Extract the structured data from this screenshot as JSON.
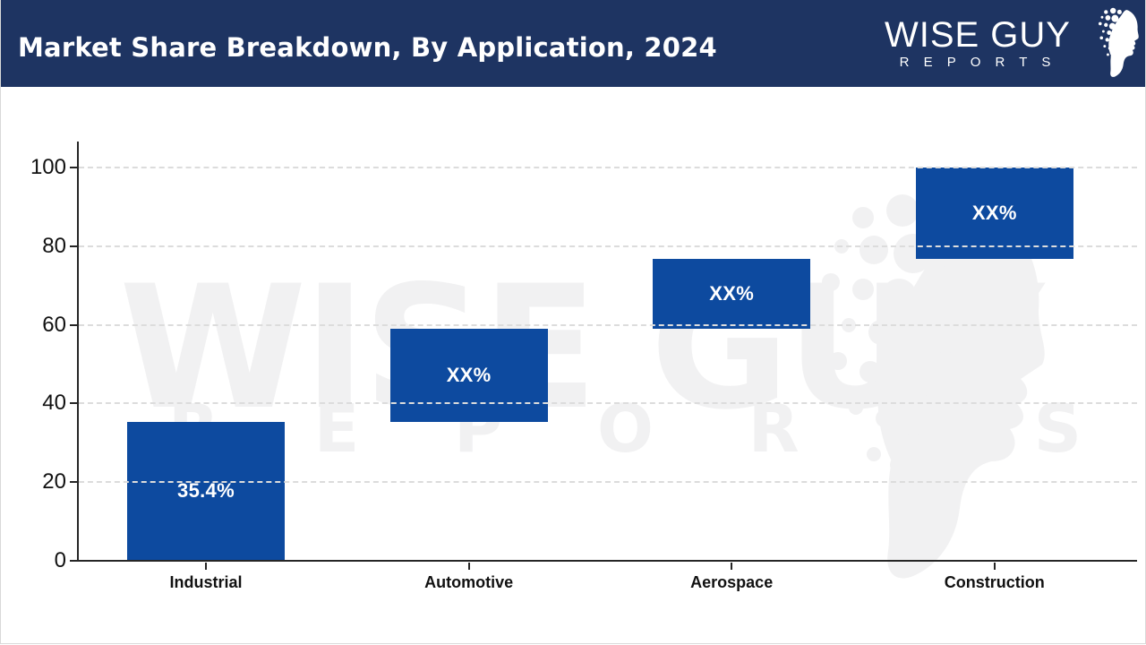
{
  "header": {
    "title": "Market Share Breakdown, By Application, 2024",
    "brand": {
      "name": "WISE GUY",
      "tagline": "R E P O R T S"
    }
  },
  "watermark": {
    "line1": "WISE GUY",
    "line2": "R E P O R T S"
  },
  "chart_data": {
    "type": "bar",
    "variant": "waterfall",
    "title": "Market Share Breakdown, By Application, 2024",
    "categories": [
      "Industrial",
      "Automotive",
      "Aerospace",
      "Construction"
    ],
    "segments": [
      {
        "category": "Industrial",
        "start": 0,
        "end": 35.4,
        "label": "35.4%"
      },
      {
        "category": "Automotive",
        "start": 35.4,
        "end": 59.0,
        "label": "XX%"
      },
      {
        "category": "Aerospace",
        "start": 59.0,
        "end": 76.8,
        "label": "XX%"
      },
      {
        "category": "Construction",
        "start": 76.8,
        "end": 100,
        "label": "XX%"
      }
    ],
    "yticks": [
      0,
      20,
      40,
      60,
      80,
      100
    ],
    "ylim": [
      0,
      100
    ],
    "xlabel": "",
    "ylabel": "",
    "grid": "horizontal-dashed",
    "legend": "none"
  },
  "colors": {
    "header_bg": "#1e3462",
    "bar": "#0d4a9f",
    "bar_label": "#ffffff",
    "grid": "#dcdcdc",
    "axis": "#262626",
    "tick_label": "#111111",
    "watermark": "#f1f1f2",
    "page_bg": "#ffffff"
  }
}
